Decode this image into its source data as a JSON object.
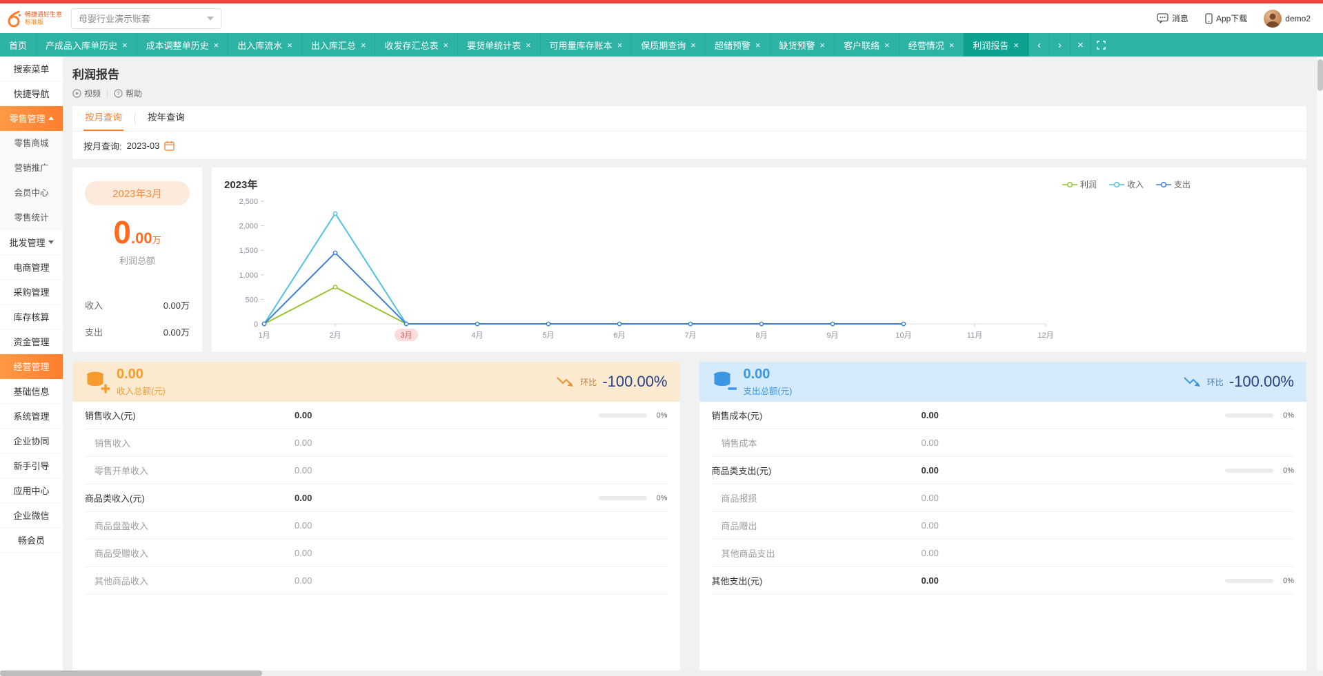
{
  "app": {
    "logo_title": "畅捷通好生意",
    "logo_subtitle": "标准版",
    "account_select": "母婴行业演示账套",
    "messages_label": "消息",
    "app_download_label": "App下载",
    "username": "demo2"
  },
  "tabbar": {
    "tabs": [
      {
        "label": "首页",
        "closable": false,
        "active": false
      },
      {
        "label": "产成品入库单历史",
        "closable": true,
        "active": false
      },
      {
        "label": "成本调整单历史",
        "closable": true,
        "active": false
      },
      {
        "label": "出入库流水",
        "closable": true,
        "active": false
      },
      {
        "label": "出入库汇总",
        "closable": true,
        "active": false
      },
      {
        "label": "收发存汇总表",
        "closable": true,
        "active": false
      },
      {
        "label": "要货单统计表",
        "closable": true,
        "active": false
      },
      {
        "label": "可用量库存账本",
        "closable": true,
        "active": false
      },
      {
        "label": "保质期查询",
        "closable": true,
        "active": false
      },
      {
        "label": "超储预警",
        "closable": true,
        "active": false
      },
      {
        "label": "缺货预警",
        "closable": true,
        "active": false
      },
      {
        "label": "客户联络",
        "closable": true,
        "active": false
      },
      {
        "label": "经营情况",
        "closable": true,
        "active": false
      },
      {
        "label": "利润报告",
        "closable": true,
        "active": true
      }
    ]
  },
  "sidebar": {
    "items": [
      {
        "label": "搜索菜单"
      },
      {
        "label": "快捷导航"
      },
      {
        "label": "零售管理",
        "active": true,
        "arrow": "up",
        "children": [
          "零售商城",
          "营销推广",
          "会员中心",
          "零售统计"
        ]
      },
      {
        "label": "批发管理",
        "arrow": "down"
      },
      {
        "label": "电商管理"
      },
      {
        "label": "采购管理"
      },
      {
        "label": "库存核算"
      },
      {
        "label": "资金管理"
      },
      {
        "label": "经营管理",
        "active": true
      },
      {
        "label": "基础信息"
      },
      {
        "label": "系统管理"
      },
      {
        "label": "企业协同"
      },
      {
        "label": "新手引导"
      },
      {
        "label": "应用中心"
      },
      {
        "label": "企业微信"
      },
      {
        "label": "畅会员"
      }
    ]
  },
  "page": {
    "title": "利润报告",
    "video_label": "视频",
    "help_label": "帮助",
    "query_tabs": [
      {
        "label": "按月查询",
        "active": true
      },
      {
        "label": "按年查询",
        "active": false
      }
    ],
    "filter_label": "按月查询:",
    "filter_value": "2023-03"
  },
  "summary": {
    "period": "2023年3月",
    "amount_int": "0",
    "amount_dec": ".00",
    "amount_unit": "万",
    "amount_label": "利润总额",
    "rows": [
      {
        "label": "收入",
        "value": "0.00万"
      },
      {
        "label": "支出",
        "value": "0.00万"
      }
    ]
  },
  "chart_data": {
    "type": "line",
    "title": "2023年",
    "categories": [
      "1月",
      "2月",
      "3月",
      "4月",
      "5月",
      "6月",
      "7月",
      "8月",
      "9月",
      "10月",
      "11月",
      "12月"
    ],
    "highlight_index": 2,
    "ylim": [
      0,
      2500
    ],
    "yticks": [
      0,
      500,
      1000,
      1500,
      2000,
      2500
    ],
    "grid": false,
    "legend_position": "top-right",
    "series": [
      {
        "name": "利润",
        "color": "#97c42d",
        "values": [
          0,
          750,
          0,
          0,
          0,
          0,
          0,
          0,
          0,
          0,
          null,
          null
        ]
      },
      {
        "name": "收入",
        "color": "#4fc3e4",
        "values": [
          0,
          2250,
          0,
          0,
          0,
          0,
          0,
          0,
          0,
          0,
          null,
          null
        ]
      },
      {
        "name": "支出",
        "color": "#3d82d9",
        "values": [
          0,
          1450,
          0,
          0,
          0,
          0,
          0,
          0,
          0,
          0,
          null,
          null
        ]
      }
    ]
  },
  "income_card": {
    "total": "0.00",
    "total_label": "收入总额(元)",
    "trend_label": "环比",
    "trend_value": "-100.00%",
    "rows": [
      {
        "label": "销售收入(元)",
        "value": "0.00",
        "bold": true,
        "bar": true,
        "pct": "0%"
      },
      {
        "label": "销售收入",
        "value": "0.00",
        "indent": true
      },
      {
        "label": "零售开单收入",
        "value": "0.00",
        "indent": true
      },
      {
        "label": "商品类收入(元)",
        "value": "0.00",
        "bold": true,
        "bar": true,
        "pct": "0%"
      },
      {
        "label": "商品盘盈收入",
        "value": "0.00",
        "indent": true
      },
      {
        "label": "商品受赠收入",
        "value": "0.00",
        "indent": true
      },
      {
        "label": "其他商品收入",
        "value": "0.00",
        "indent": true
      }
    ]
  },
  "expense_card": {
    "total": "0.00",
    "total_label": "支出总额(元)",
    "trend_label": "环比",
    "trend_value": "-100.00%",
    "rows": [
      {
        "label": "销售成本(元)",
        "value": "0.00",
        "bold": true,
        "bar": true,
        "pct": "0%"
      },
      {
        "label": "销售成本",
        "value": "0.00",
        "indent": true
      },
      {
        "label": "商品类支出(元)",
        "value": "0.00",
        "bold": true,
        "bar": true,
        "pct": "0%"
      },
      {
        "label": "商品报损",
        "value": "0.00",
        "indent": true
      },
      {
        "label": "商品赠出",
        "value": "0.00",
        "indent": true
      },
      {
        "label": "其他商品支出",
        "value": "0.00",
        "indent": true
      },
      {
        "label": "其他支出(元)",
        "value": "0.00",
        "bold": true,
        "bar": true,
        "pct": "0%"
      }
    ]
  },
  "colors": {
    "top_strip": "#ee4238",
    "teal": "#2db3a3",
    "teal_active": "#0da290",
    "orange": "#ff7e2e",
    "profit_orange": "#ff6a1c",
    "navy": "#27418b",
    "income_header_bg": "#fbead0",
    "income_accent": "#f79b2e",
    "expense_header_bg": "#d5eafb",
    "expense_accent": "#3b97e3"
  }
}
